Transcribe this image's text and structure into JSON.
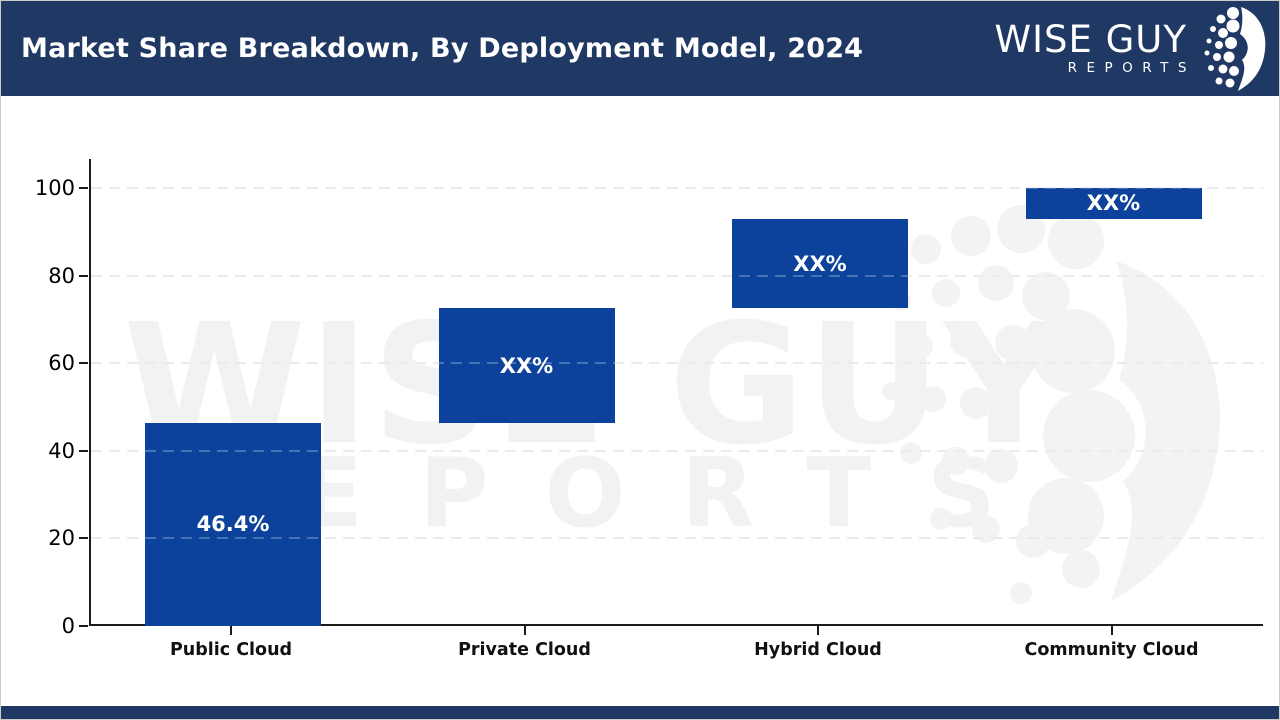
{
  "header": {
    "title": "Market Share Breakdown, By Deployment Model, 2024",
    "bg_color": "#1f3864",
    "logo": {
      "line1": "WISE GUY",
      "line2": "REPORTS"
    }
  },
  "watermark": {
    "line1": "WISE GUY",
    "line2": "REPORTS"
  },
  "footer": {
    "bg_color": "#1f3864"
  },
  "chart_data": {
    "type": "bar",
    "subtype": "waterfall-stacked-share",
    "title": "Market Share Breakdown, By Deployment Model, 2024",
    "categories": [
      "Public Cloud",
      "Private Cloud",
      "Hybrid Cloud",
      "Community Cloud"
    ],
    "segments": [
      {
        "category": "Public Cloud",
        "from": 0,
        "to": 46.4,
        "value_label": "46.4%"
      },
      {
        "category": "Private Cloud",
        "from": 46.4,
        "to": 72.5,
        "value_label": "XX%"
      },
      {
        "category": "Hybrid Cloud",
        "from": 72.5,
        "to": 93.0,
        "value_label": "XX%"
      },
      {
        "category": "Community Cloud",
        "from": 93.0,
        "to": 100.0,
        "value_label": "XX%"
      }
    ],
    "xlabel": "",
    "ylabel": "",
    "ylim": [
      0,
      106
    ],
    "yticks": [
      0,
      20,
      40,
      60,
      80,
      100
    ],
    "grid": "horizontal-dashed",
    "legend": "none",
    "bar_color": "#0c429c",
    "bar_label_color": "#ffffff",
    "axis_color": "#1a1a1a",
    "grid_color": "#e4e4e4"
  }
}
